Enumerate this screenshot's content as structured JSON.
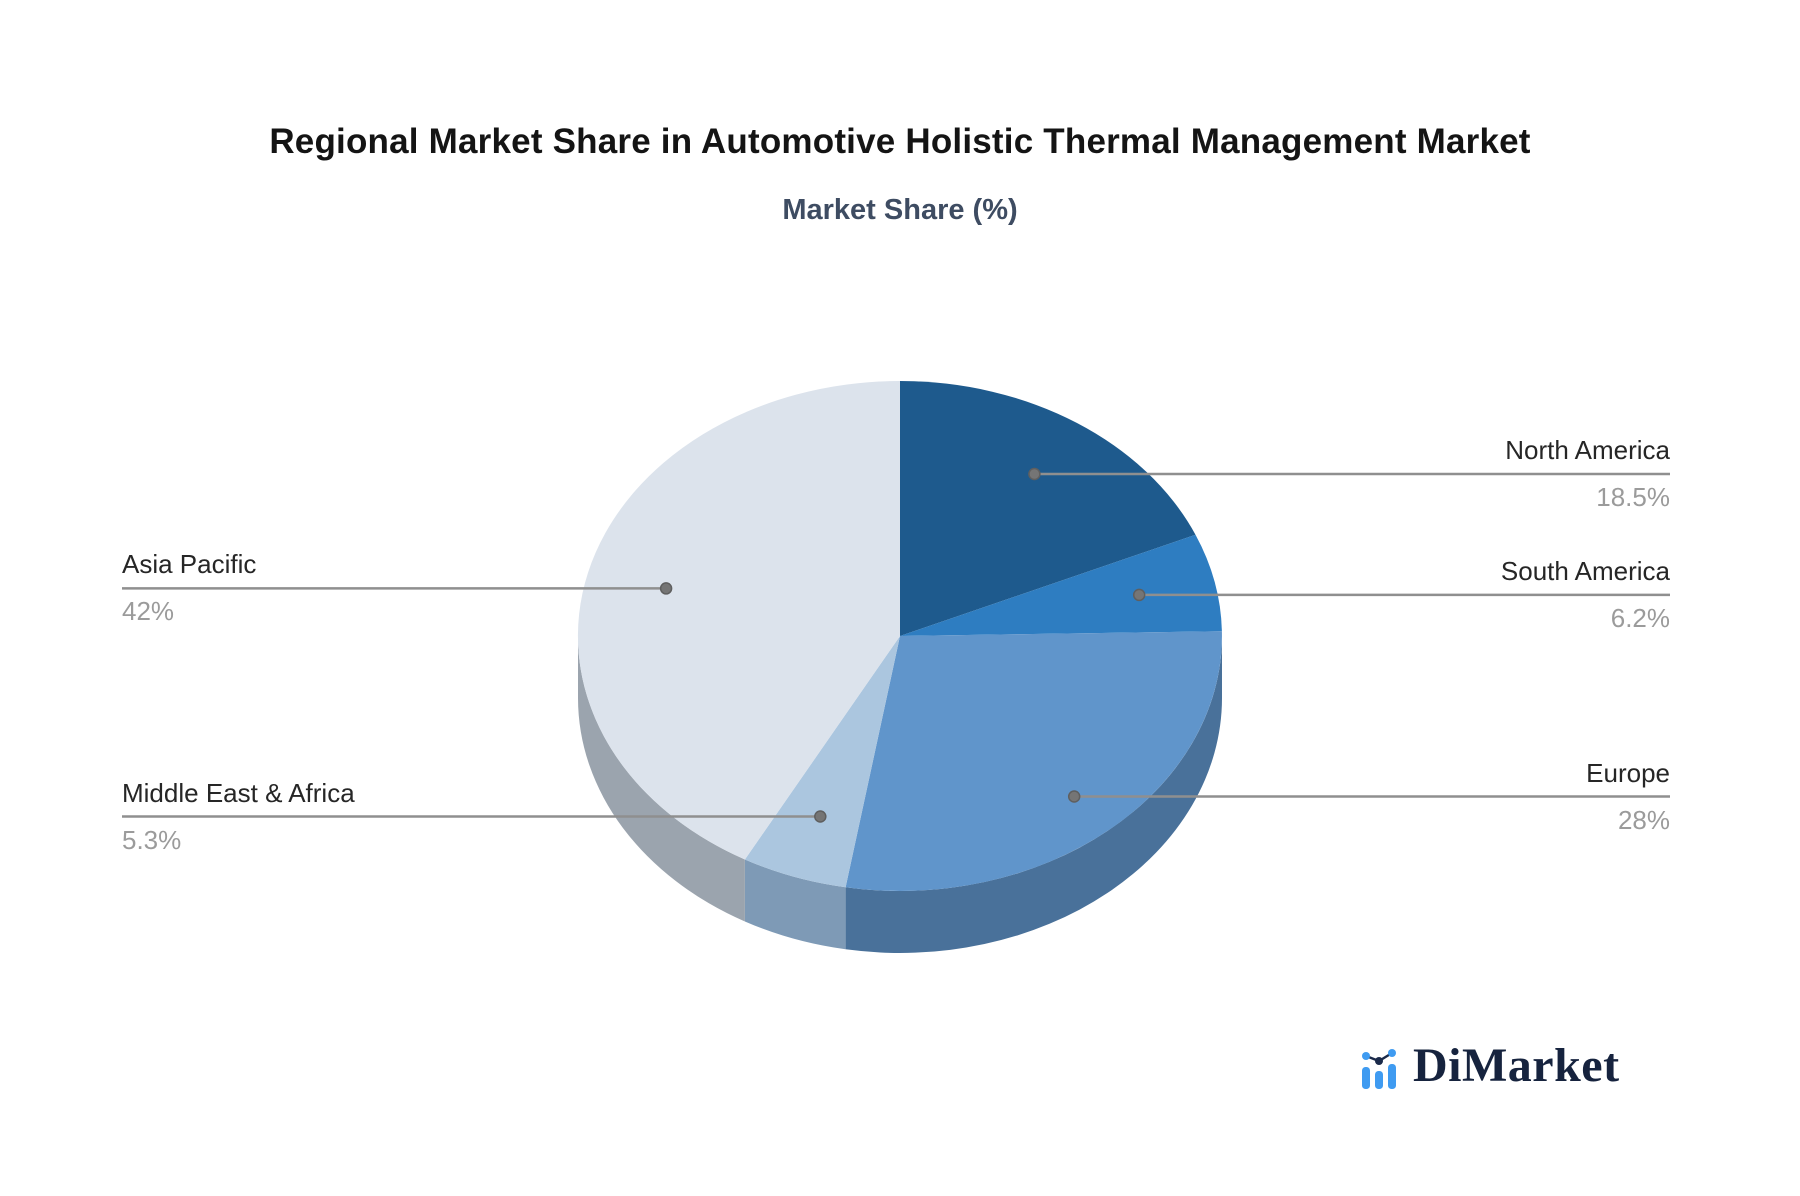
{
  "chart_data": {
    "type": "pie",
    "title": "Regional Market Share in Automotive Holistic Thermal Management Market",
    "subtitle": "Market Share (%)",
    "unit": "%",
    "start_angle_deg": 0,
    "direction": "clockwise",
    "legend_position": "none",
    "label_style": "leader-lines",
    "slices": [
      {
        "label": "North America",
        "value": 18.5,
        "value_label": "18.5%",
        "color": "#1e5a8d",
        "side_color": "#16456e",
        "label_side": "right"
      },
      {
        "label": "South America",
        "value": 6.2,
        "value_label": "6.2%",
        "color": "#2e7dc1",
        "side_color": "#23619c",
        "label_side": "right"
      },
      {
        "label": "Europe",
        "value": 28,
        "value_label": "28%",
        "color": "#6095cb",
        "side_color": "#49719a",
        "label_side": "right"
      },
      {
        "label": "Middle East & Africa",
        "value": 5.3,
        "value_label": "5.3%",
        "color": "#abc6df",
        "side_color": "#7e9ab6",
        "label_side": "left"
      },
      {
        "label": "Asia Pacific",
        "value": 42,
        "value_label": "42%",
        "color": "#dce3ec",
        "side_color": "#9ba4ae",
        "label_side": "left"
      }
    ],
    "colors": {
      "label_text": "#262626",
      "value_text": "#9b9b9b",
      "leader_line": "#8f8f8f",
      "leader_dot": "#757575",
      "title_text": "#141414",
      "subtitle_text": "#3e4c62"
    }
  },
  "logo": {
    "name": "DiMarket",
    "icon": "bar-chart-icon",
    "text_color": "#16233e",
    "accent_color": "#3f9bf1",
    "dark_accent": "#1b2a4a"
  }
}
